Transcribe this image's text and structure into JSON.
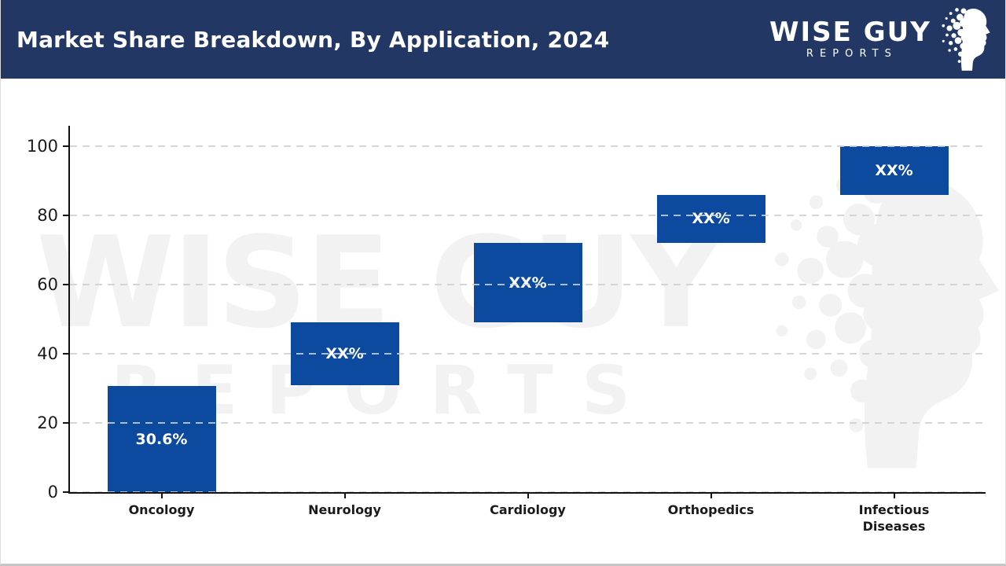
{
  "header": {
    "title": "Market Share Breakdown, By Application, 2024",
    "logo": {
      "line1": "WISE GUY",
      "line2": "REPORTS"
    }
  },
  "watermark": {
    "line1": "WISE GUY",
    "line2": "REPORTS"
  },
  "colors": {
    "header_bg": "#223764",
    "title_text": "#ffffff",
    "bar": "#0b4a9f",
    "axis": "#111111",
    "grid": "#cfcfcf",
    "tick_label": "#1a1a1a",
    "watermark": "#f2f2f2"
  },
  "chart_data": {
    "type": "bar",
    "variant": "floating-waterfall",
    "title": "Market Share Breakdown, By Application, 2024",
    "categories": [
      "Oncology",
      "Neurology",
      "Cardiology",
      "Orthopedics",
      "Infectious Diseases"
    ],
    "segments": [
      {
        "category": "Oncology",
        "start": 0,
        "end": 30.6,
        "label": "30.6%"
      },
      {
        "category": "Neurology",
        "start": 31,
        "end": 49,
        "label": "XX%"
      },
      {
        "category": "Cardiology",
        "start": 49,
        "end": 72,
        "label": "XX%"
      },
      {
        "category": "Orthopedics",
        "start": 72,
        "end": 86,
        "label": "XX%"
      },
      {
        "category": "Infectious Diseases",
        "start": 86,
        "end": 100,
        "label": "XX%"
      }
    ],
    "yticks": [
      0,
      20,
      40,
      60,
      80,
      100
    ],
    "ylim": [
      0,
      105
    ],
    "grid": "dashed-horizontal",
    "legend": "none",
    "xlabel": "",
    "ylabel": ""
  }
}
